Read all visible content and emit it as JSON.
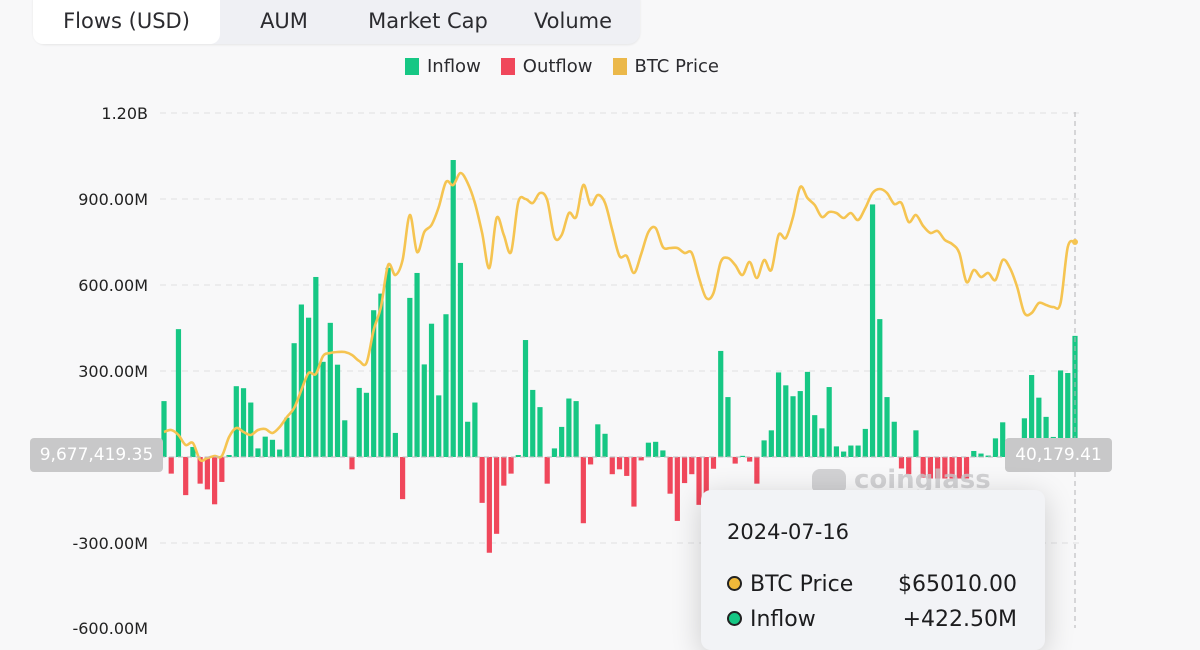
{
  "tabs": [
    {
      "label": "Flows (USD)",
      "active": true
    },
    {
      "label": "AUM",
      "active": false
    },
    {
      "label": "Market Cap",
      "active": false
    },
    {
      "label": "Volume",
      "active": false
    }
  ],
  "colors": {
    "inflow": "#16c784",
    "outflow": "#f0475b",
    "btc_price": "#f5c451"
  },
  "crosshair": {
    "left_value": "9,677,419.35",
    "right_value": "40,179.41"
  },
  "watermark": "coinglass",
  "tooltip": {
    "date": "2024-07-16",
    "rows": [
      {
        "label": "BTC Price",
        "value": "$65010.00",
        "color": "#f0b93a"
      },
      {
        "label": "Inflow",
        "value": "+422.50M",
        "color": "#16c784"
      }
    ]
  },
  "chart_data": {
    "type": "bar",
    "title": "",
    "legend": [
      "Inflow",
      "Outflow",
      "BTC Price"
    ],
    "legend_position": "top-center",
    "y_ticks": [
      "1.20B",
      "900.00M",
      "600.00M",
      "300.00M",
      "-300.00M",
      "-600.00M"
    ],
    "ylim_millions": [
      -600,
      1200
    ],
    "grid": true,
    "flows_millions": [
      195,
      -58,
      446,
      -133,
      35,
      -93,
      -113,
      -165,
      -87,
      7,
      247,
      240,
      190,
      30,
      71,
      60,
      26,
      137,
      397,
      532,
      486,
      628,
      332,
      468,
      322,
      128,
      -43,
      241,
      224,
      512,
      570,
      660,
      84,
      -147,
      555,
      642,
      323,
      465,
      215,
      498,
      1036,
      677,
      123,
      190,
      -160,
      -334,
      -268,
      -100,
      -58,
      7,
      408,
      234,
      174,
      -93,
      30,
      105,
      204,
      195,
      -231,
      -26,
      114,
      81,
      -60,
      -43,
      -66,
      -173,
      -12,
      50,
      53,
      23,
      -128,
      -223,
      -91,
      -60,
      -167,
      -130,
      -41,
      370,
      209,
      -23,
      4,
      -16,
      -93,
      58,
      93,
      295,
      250,
      212,
      230,
      297,
      146,
      100,
      244,
      37,
      19,
      40,
      40,
      98,
      881,
      481,
      209,
      123,
      -40,
      -60,
      93,
      -72,
      -75,
      -75,
      -75,
      -75,
      -75,
      -75,
      21,
      12,
      5,
      65,
      121,
      10,
      10,
      135,
      286,
      207,
      140,
      70,
      302,
      293,
      422.5
    ],
    "btc_price": [
      43067,
      43298,
      42720,
      41565,
      41796,
      39833,
      40064,
      40295,
      40295,
      42489,
      43529,
      43067,
      42720,
      43298,
      43413,
      42951,
      43644,
      44799,
      45839,
      47918,
      49881,
      49766,
      51845,
      52191,
      52307,
      52307,
      51960,
      51267,
      51036,
      54848,
      57504,
      62355,
      61200,
      62933,
      68130,
      63857,
      66167,
      66975,
      69054,
      71942,
      71595,
      72981,
      71826,
      69516,
      66051,
      62009,
      67784,
      65820,
      63857,
      69632,
      69978,
      69516,
      70671,
      69863,
      65589,
      65820,
      68361,
      67899,
      71595,
      69285,
      70440,
      69516,
      66398,
      63395,
      63395,
      61431,
      63625,
      66167,
      66629,
      64434,
      64319,
      64319,
      63741,
      63741,
      60854,
      58544,
      59121,
      62702,
      63164,
      62355,
      61200,
      62702,
      60854,
      62933,
      61778,
      65820,
      65474,
      67899,
      71364,
      70094,
      69285,
      67899,
      68477,
      68361,
      67784,
      68361,
      67553,
      68939,
      70671,
      71133,
      70671,
      69401,
      69516,
      67322,
      68130,
      66860,
      66051,
      66282,
      65243,
      64781,
      63741,
      60392,
      61778,
      60969,
      61431,
      60623,
      62933,
      62009,
      59814,
      56811,
      56811,
      57966,
      57735,
      57504,
      57966,
      64434,
      65010
    ]
  }
}
